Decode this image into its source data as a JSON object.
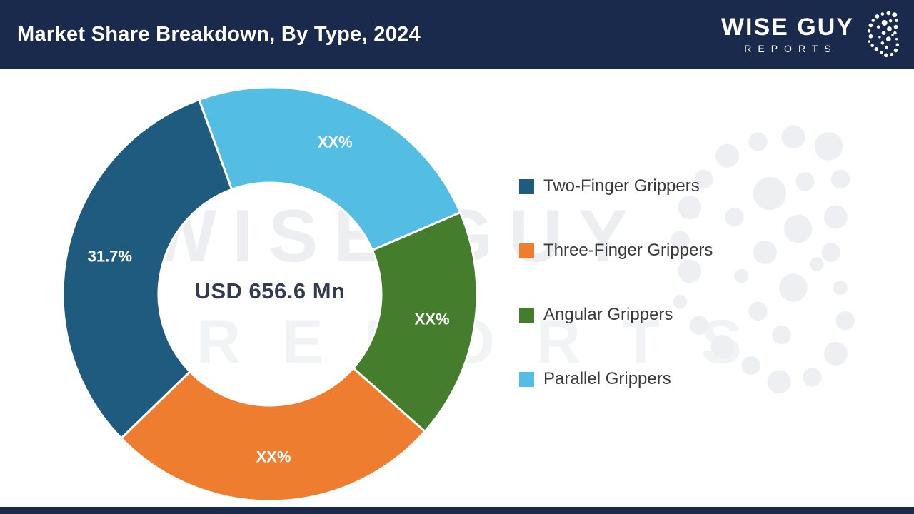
{
  "header": {
    "title": "Market Share Breakdown, By Type, 2024",
    "logo": {
      "line1": "WISE GUY",
      "line2": "REPORTS"
    }
  },
  "watermark": {
    "line1": "WISE GUY",
    "line2": "REPORTS"
  },
  "footer": {
    "color": "#1a2a4d"
  },
  "chart_data": {
    "type": "pie",
    "subtype": "donut",
    "title": "Market Share Breakdown, By Type, 2024",
    "center_label": "USD 656.6 Mn",
    "start_angle_deg": 340,
    "direction": "ccw",
    "legend_position": "right",
    "slices": [
      {
        "label": "Two-Finger Grippers",
        "value": 31.7,
        "display": "31.7%",
        "color": "#1f5b7e"
      },
      {
        "label": "Three-Finger Grippers",
        "value": 26.2,
        "display": "XX%",
        "color": "#ee7d30"
      },
      {
        "label": "Angular Grippers",
        "value": 18.0,
        "display": "XX%",
        "color": "#447d2b"
      },
      {
        "label": "Parallel Grippers",
        "value": 24.1,
        "display": "XX%",
        "color": "#54bde4"
      }
    ]
  }
}
